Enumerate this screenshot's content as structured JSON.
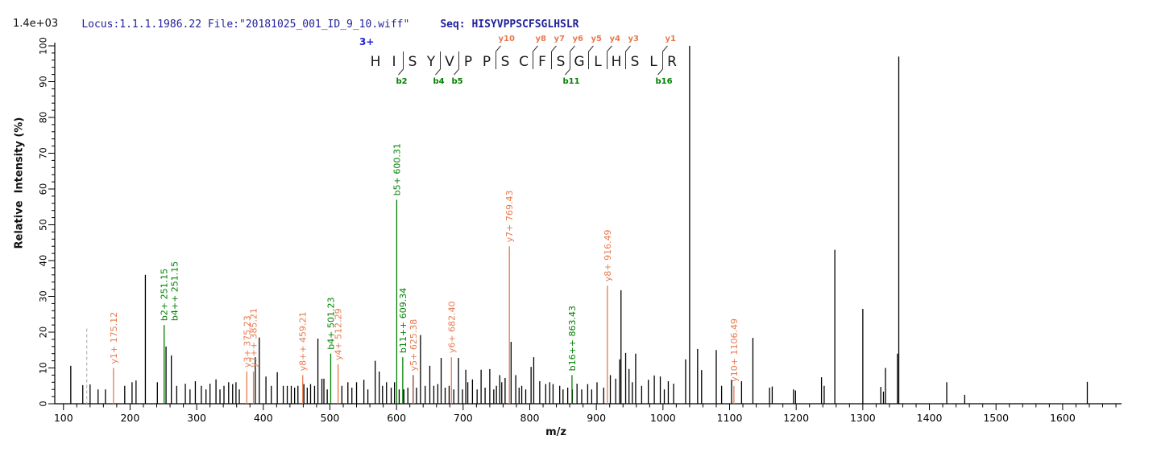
{
  "header": {
    "locus_file": "Locus:1.1.1.1986.22 File:\"20181025_001_ID_9_10.wiff\"",
    "seq_label": "Seq: HISYVPPSCFSGLHSLR"
  },
  "plot": {
    "max_intensity_label": "1.4e+03",
    "y_axis_title": "Relative  Intensity (%)",
    "x_axis_title": "m/z"
  },
  "peptide": {
    "charge_label": "3+",
    "sequence": "HISYVPPSCFSGLHSLR",
    "residues": [
      "H",
      "I",
      "S",
      "Y",
      "V",
      "P",
      "P",
      "S",
      "C",
      "F",
      "S",
      "G",
      "L",
      "H",
      "S",
      "L",
      "R"
    ],
    "b_ions": [
      {
        "label": "b2",
        "after_residue": 2
      },
      {
        "label": "b4",
        "after_residue": 4
      },
      {
        "label": "b5",
        "after_residue": 5
      },
      {
        "label": "b11",
        "after_residue": 11
      },
      {
        "label": "b16",
        "after_residue": 16
      }
    ],
    "y_ions": [
      {
        "label": "y10",
        "before_residue": 8
      },
      {
        "label": "y8",
        "before_residue": 10
      },
      {
        "label": "y7",
        "before_residue": 11
      },
      {
        "label": "y6",
        "before_residue": 12
      },
      {
        "label": "y5",
        "before_residue": 13
      },
      {
        "label": "y4",
        "before_residue": 14
      },
      {
        "label": "y3",
        "before_residue": 15
      },
      {
        "label": "y1",
        "before_residue": 17
      }
    ]
  },
  "colors": {
    "header_text": "#22229e",
    "charge": "#2323d6",
    "y_ion": "#e8794e",
    "b_ion": "#008000",
    "peak": "#000000",
    "axis": "#000000",
    "dashed_marker": "#b4b4b4",
    "residue_text": "#1a1a1a"
  },
  "chart_data": {
    "type": "bar",
    "subtype": "mass-spectrum-stick-plot",
    "xlabel": "m/z",
    "ylabel": "Relative  Intensity (%)",
    "base_peak_intensity": "1.4e+03",
    "x_tick_labels": [
      100,
      200,
      300,
      400,
      500,
      600,
      700,
      800,
      900,
      1000,
      1100,
      1200,
      1300,
      1400,
      1500,
      1600
    ],
    "x_major_step": 100,
    "x_minor_step": 20,
    "xlim": [
      87,
      1686
    ],
    "ylim": [
      0,
      100
    ],
    "y_major_step": 10,
    "y_minor_step": 2,
    "grid": false,
    "legend": false,
    "dashed_marker": {
      "mz": 135,
      "intensity": 21
    },
    "labeled_peaks": [
      {
        "mz": 175.12,
        "intensity": 10,
        "ion": "y",
        "labels": [
          "y1+ 175.12"
        ]
      },
      {
        "mz": 251.15,
        "intensity": 22,
        "ion": "b",
        "labels": [
          "b2+ 251.15",
          "b4++ 251.15"
        ]
      },
      {
        "mz": 375.23,
        "intensity": 9,
        "ion": "y",
        "labels": [
          "y3+ 375.23"
        ]
      },
      {
        "mz": 385.21,
        "intensity": 9,
        "ion": "y",
        "labels": [
          "y7++ 385.21"
        ]
      },
      {
        "mz": 459.21,
        "intensity": 8,
        "ion": "y",
        "labels": [
          "y8++ 459.21"
        ]
      },
      {
        "mz": 501.23,
        "intensity": 14,
        "ion": "b",
        "labels": [
          "b4+ 501.23"
        ]
      },
      {
        "mz": 512.29,
        "intensity": 11,
        "ion": "y",
        "labels": [
          "y4+ 512.29"
        ]
      },
      {
        "mz": 600.31,
        "intensity": 57,
        "ion": "b",
        "labels": [
          "b5+ 600.31"
        ]
      },
      {
        "mz": 609.34,
        "intensity": 13,
        "ion": "b",
        "labels": [
          "b11++ 609.34"
        ]
      },
      {
        "mz": 625.38,
        "intensity": 8,
        "ion": "y",
        "labels": [
          "y5+ 625.38"
        ]
      },
      {
        "mz": 682.4,
        "intensity": 13,
        "ion": "y",
        "labels": [
          "y6+ 682.40"
        ]
      },
      {
        "mz": 769.43,
        "intensity": 44,
        "ion": "y",
        "labels": [
          "y7+ 769.43"
        ]
      },
      {
        "mz": 863.43,
        "intensity": 8,
        "ion": "b",
        "labels": [
          "b16++ 863.43"
        ]
      },
      {
        "mz": 916.49,
        "intensity": 33,
        "ion": "y",
        "labels": [
          "y8+ 916.49"
        ]
      },
      {
        "mz": 1106.49,
        "intensity": 5,
        "ion": "y",
        "labels": [
          "y10+ 1106.49"
        ]
      }
    ],
    "unlabeled_peaks": [
      [
        111,
        10.6
      ],
      [
        129,
        5.2
      ],
      [
        140,
        5.4
      ],
      [
        152,
        4
      ],
      [
        163,
        4
      ],
      [
        192,
        5
      ],
      [
        203,
        6
      ],
      [
        209,
        6.5
      ],
      [
        223,
        36
      ],
      [
        241,
        6
      ],
      [
        254,
        16
      ],
      [
        262,
        13.5
      ],
      [
        270,
        5
      ],
      [
        283,
        5.6
      ],
      [
        290,
        4
      ],
      [
        298,
        6.3
      ],
      [
        307,
        5
      ],
      [
        314,
        4
      ],
      [
        320,
        5.6
      ],
      [
        329,
        6.8
      ],
      [
        335,
        4
      ],
      [
        341,
        5
      ],
      [
        348,
        6
      ],
      [
        354,
        5.5
      ],
      [
        359,
        6
      ],
      [
        364,
        4
      ],
      [
        388,
        13
      ],
      [
        394,
        18.5
      ],
      [
        404,
        7.6
      ],
      [
        412,
        5
      ],
      [
        421,
        8.8
      ],
      [
        430,
        5
      ],
      [
        436,
        5
      ],
      [
        442,
        5
      ],
      [
        447,
        4.5
      ],
      [
        452,
        5
      ],
      [
        461,
        5.5
      ],
      [
        466,
        4.5
      ],
      [
        471,
        5.5
      ],
      [
        477,
        5
      ],
      [
        482,
        18.2
      ],
      [
        488,
        7
      ],
      [
        491,
        7
      ],
      [
        496,
        4
      ],
      [
        518,
        5
      ],
      [
        527,
        6
      ],
      [
        533,
        4.5
      ],
      [
        540,
        6
      ],
      [
        551,
        6.7
      ],
      [
        557,
        4
      ],
      [
        568,
        12
      ],
      [
        574,
        9
      ],
      [
        579,
        5
      ],
      [
        585,
        6
      ],
      [
        592,
        4.5
      ],
      [
        597,
        6
      ],
      [
        604,
        4
      ],
      [
        611,
        4
      ],
      [
        617,
        4.5
      ],
      [
        625,
        8
      ],
      [
        630,
        4.5
      ],
      [
        636,
        19.2
      ],
      [
        643,
        5
      ],
      [
        650,
        10.6
      ],
      [
        656,
        5
      ],
      [
        662,
        5.5
      ],
      [
        667,
        12.8
      ],
      [
        673,
        4.5
      ],
      [
        679,
        5
      ],
      [
        686,
        4
      ],
      [
        693,
        12.8
      ],
      [
        699,
        4
      ],
      [
        704,
        9.5
      ],
      [
        707,
        6
      ],
      [
        714,
        6.8
      ],
      [
        721,
        4
      ],
      [
        727,
        9.5
      ],
      [
        733,
        4.5
      ],
      [
        740,
        9.7
      ],
      [
        746,
        4
      ],
      [
        750,
        5
      ],
      [
        755,
        8
      ],
      [
        758,
        6
      ],
      [
        763,
        7.2
      ],
      [
        772,
        17.3
      ],
      [
        779,
        8
      ],
      [
        784,
        4.5
      ],
      [
        788,
        5
      ],
      [
        794,
        4
      ],
      [
        802,
        10.3
      ],
      [
        806,
        13
      ],
      [
        815,
        6.3
      ],
      [
        824,
        5.5
      ],
      [
        830,
        6
      ],
      [
        835,
        5.5
      ],
      [
        845,
        5
      ],
      [
        850,
        4
      ],
      [
        857,
        4.5
      ],
      [
        864,
        4
      ],
      [
        871,
        5.6
      ],
      [
        878,
        4
      ],
      [
        887,
        5.5
      ],
      [
        893,
        4
      ],
      [
        901,
        6
      ],
      [
        911,
        4.5
      ],
      [
        921,
        8
      ],
      [
        929,
        7
      ],
      [
        935,
        12.4
      ],
      [
        937,
        31.7
      ],
      [
        944,
        14.2
      ],
      [
        949,
        9.7
      ],
      [
        954,
        6
      ],
      [
        959,
        14
      ],
      [
        968,
        5
      ],
      [
        978,
        6.7
      ],
      [
        987,
        7.9
      ],
      [
        996,
        7.6
      ],
      [
        1002,
        4
      ],
      [
        1008,
        6.3
      ],
      [
        1016,
        5.6
      ],
      [
        1034,
        12.4
      ],
      [
        1040,
        100
      ],
      [
        1052,
        15.3
      ],
      [
        1058,
        9.4
      ],
      [
        1080,
        15
      ],
      [
        1088,
        5
      ],
      [
        1103,
        6.7
      ],
      [
        1118,
        6.3
      ],
      [
        1135,
        18.4
      ],
      [
        1160,
        4.5
      ],
      [
        1164,
        4.8
      ],
      [
        1196,
        4
      ],
      [
        1199,
        3.7
      ],
      [
        1238,
        7.4
      ],
      [
        1242,
        5
      ],
      [
        1258,
        43
      ],
      [
        1300,
        26.5
      ],
      [
        1327,
        4.7
      ],
      [
        1331,
        3.4
      ],
      [
        1334,
        10
      ],
      [
        1352,
        14
      ],
      [
        1354,
        97
      ],
      [
        1426,
        6
      ],
      [
        1453,
        2.5
      ],
      [
        1637,
        6.1
      ]
    ]
  }
}
